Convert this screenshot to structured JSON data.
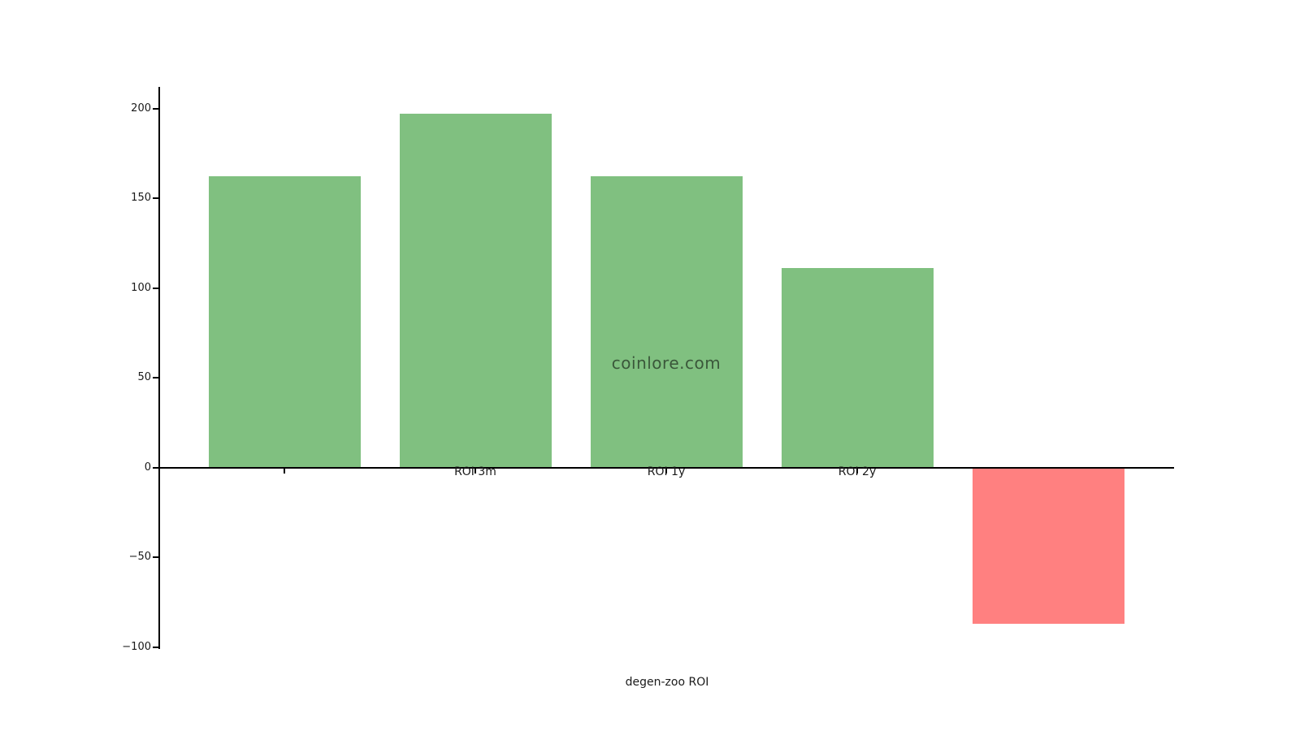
{
  "page": {
    "background": "#ffffff"
  },
  "watermark": {
    "text": "coinlore.com",
    "color": "rgba(0,0,0,0.55)"
  },
  "chart_data": {
    "type": "bar",
    "title": "",
    "xlabel": "degen-zoo ROI",
    "ylabel": "",
    "categories": [
      "",
      "ROI 3m",
      "ROI 1y",
      "ROI 2y",
      ""
    ],
    "values": [
      162,
      197,
      162,
      111,
      -87
    ],
    "positive_color": "#80c080",
    "negative_color": "#ff8080",
    "axis_color": "#000000",
    "text_color": "#1a1a1a",
    "ylim": [
      -101,
      212
    ],
    "yticks": [
      200,
      150,
      100,
      50,
      0,
      -50,
      -100
    ],
    "ytick_labels": [
      "200",
      "150",
      "100",
      "50",
      "0",
      "−50",
      "−100"
    ],
    "grid": false,
    "legend_position": "none"
  }
}
